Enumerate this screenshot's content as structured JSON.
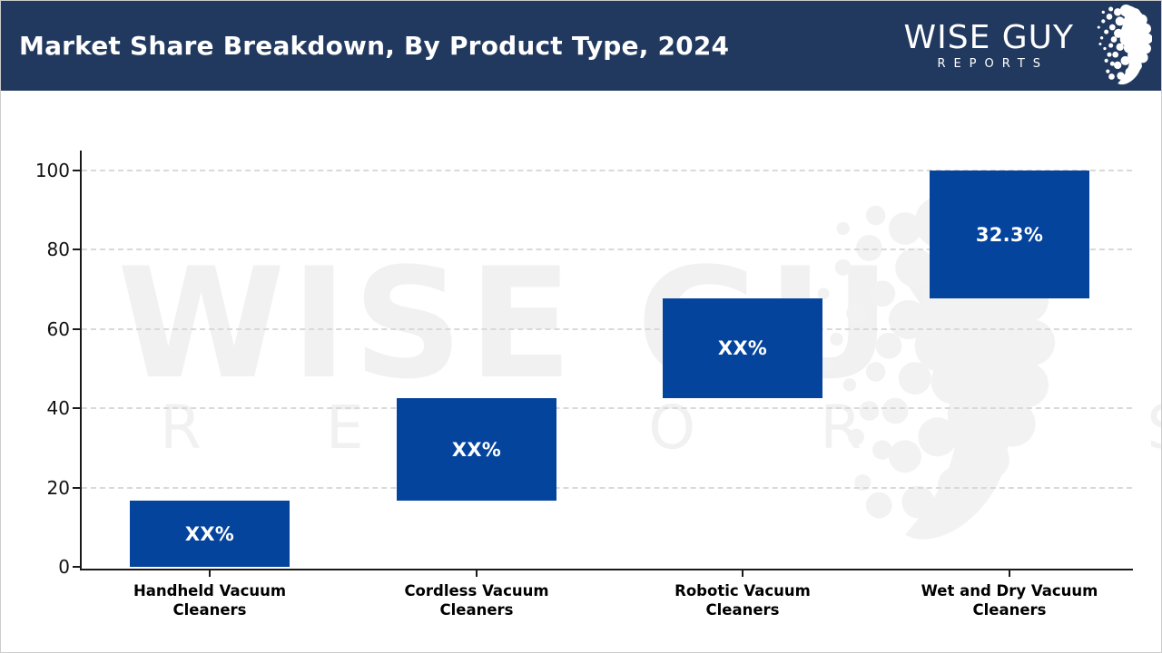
{
  "header": {
    "title": "Market Share Breakdown, By Product Type, 2024",
    "logo": {
      "line1": "WISE GUY",
      "line2": "REPORTS"
    },
    "bg_color": "#22395f"
  },
  "watermark": {
    "line1": "WISE GUY",
    "line2": "R E P O R T S"
  },
  "chart_data": {
    "type": "waterfall",
    "title": "Market Share Breakdown, By Product Type, 2024",
    "categories": [
      "Handheld Vacuum Cleaners",
      "Cordless Vacuum Cleaners",
      "Robotic Vacuum Cleaners",
      "Wet and Dry Vacuum Cleaners"
    ],
    "segments": [
      {
        "category": "Handheld Vacuum Cleaners",
        "start": 0,
        "end": 16.6,
        "value": 16.6,
        "label": "XX%"
      },
      {
        "category": "Cordless Vacuum Cleaners",
        "start": 16.6,
        "end": 42.6,
        "value": 26.0,
        "label": "XX%"
      },
      {
        "category": "Robotic Vacuum Cleaners",
        "start": 42.6,
        "end": 67.7,
        "value": 25.1,
        "label": "XX%"
      },
      {
        "category": "Wet and Dry Vacuum Cleaners",
        "start": 67.7,
        "end": 100,
        "value": 32.3,
        "label": "32.3%"
      }
    ],
    "yticks": [
      0,
      20,
      40,
      60,
      80,
      100
    ],
    "ylim": [
      0,
      104
    ],
    "grid": "dashed-horizontal",
    "legend": "none",
    "bar_color": "#05449c",
    "bar_label_color": "#ffffff",
    "xlabel": "",
    "ylabel": ""
  }
}
